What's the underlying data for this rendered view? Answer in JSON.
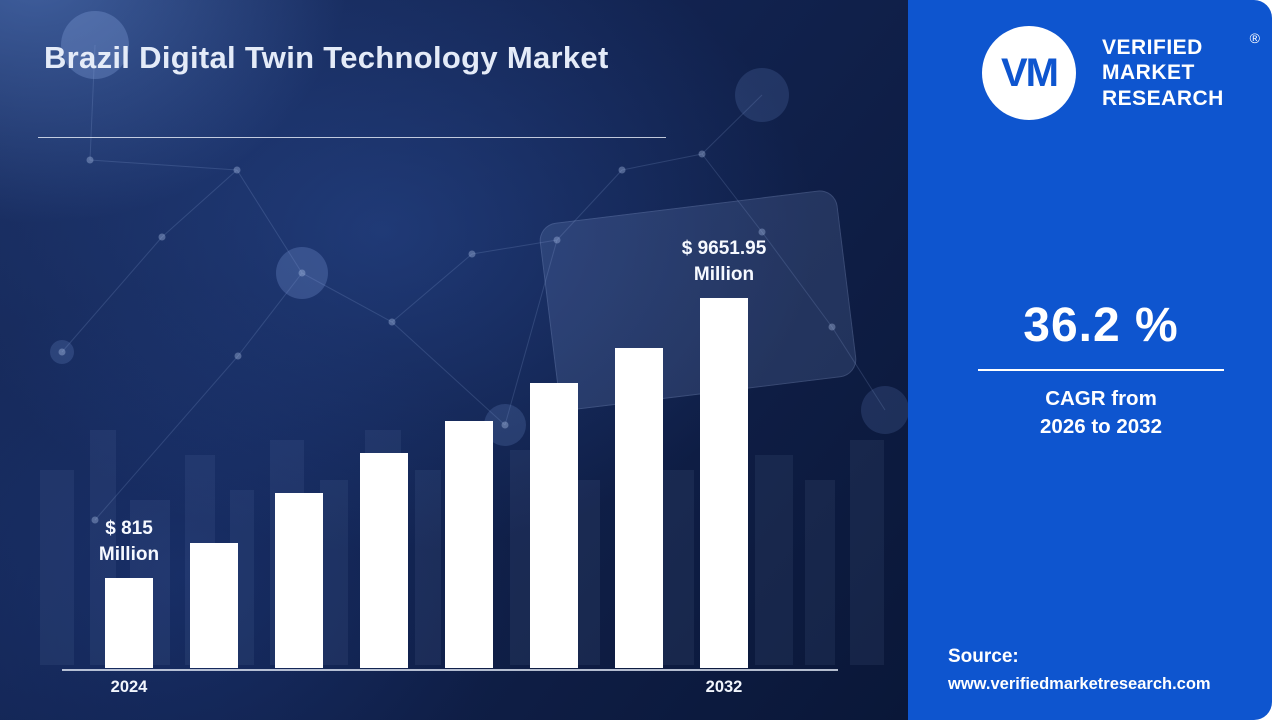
{
  "header": {
    "title": "Brazil Digital Twin Technology Market"
  },
  "chart_data": {
    "type": "bar",
    "title": "Brazil Digital Twin Technology Market",
    "unit": "USD Million",
    "bar_color": "#ffffff",
    "grid": false,
    "legend": false,
    "x_axis_visible_labels": [
      "2024",
      "2032"
    ],
    "annotations": [
      "$ 815 Million",
      "$ 9651.95 Million"
    ],
    "bars": [
      {
        "label": "2024",
        "value": 815,
        "height_pct": 24.3,
        "annotation_line1": "$ 815",
        "annotation_line2": "Million"
      },
      {
        "label": "",
        "value": 1160,
        "height_pct": 33.8
      },
      {
        "label": "",
        "value": 1650,
        "height_pct": 47.3
      },
      {
        "label": "",
        "value": 2350,
        "height_pct": 58.1
      },
      {
        "label": "",
        "value": 3350,
        "height_pct": 66.8
      },
      {
        "label": "",
        "value": 4770,
        "height_pct": 77.0
      },
      {
        "label": "",
        "value": 6790,
        "height_pct": 86.5
      },
      {
        "label": "2032",
        "value": 9651.95,
        "height_pct": 100,
        "annotation_line1": "$ 9651.95",
        "annotation_line2": "Million"
      }
    ]
  },
  "brand": {
    "monogram": "VM",
    "name_lines": [
      "VERIFIED",
      "MARKET",
      "RESEARCH"
    ],
    "registered_mark": "®"
  },
  "stats": {
    "cagr_value": "36.2 %",
    "cagr_label_line1": "CAGR from",
    "cagr_label_line2": "2026 to 2032"
  },
  "source": {
    "label": "Source:",
    "url": "www.verifiedmarketresearch.com"
  },
  "colors": {
    "panel_blue": "#0e55cf",
    "background_dark": "#0c1a3a",
    "bar_white": "#ffffff",
    "text_light": "#e4ebf8"
  }
}
